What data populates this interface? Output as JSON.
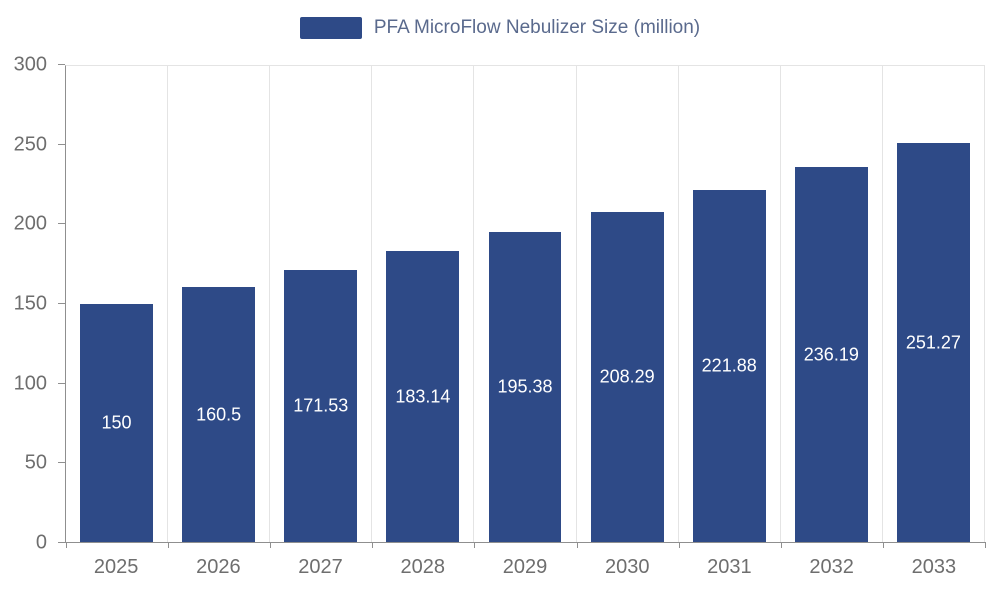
{
  "legend": {
    "label": "PFA MicroFlow Nebulizer Size (million)"
  },
  "chart_data": {
    "type": "bar",
    "title": "PFA MicroFlow Nebulizer Size (million)",
    "categories": [
      "2025",
      "2026",
      "2027",
      "2028",
      "2029",
      "2030",
      "2031",
      "2032",
      "2033"
    ],
    "values": [
      150,
      160.5,
      171.53,
      183.14,
      195.38,
      208.29,
      221.88,
      236.19,
      251.27
    ],
    "value_labels": [
      "150",
      "160.5",
      "171.53",
      "183.14",
      "195.38",
      "208.29",
      "221.88",
      "236.19",
      "251.27"
    ],
    "xlabel": "",
    "ylabel": "",
    "ylim": [
      0,
      300
    ],
    "yticks": [
      0,
      50,
      100,
      150,
      200,
      250,
      300
    ],
    "grid": true,
    "gridlines": "vertical",
    "legend_position": "top",
    "bar_color": "#2e4a87",
    "value_label_color": "#ffffff",
    "axis_label_color": "#6e6e6e"
  }
}
